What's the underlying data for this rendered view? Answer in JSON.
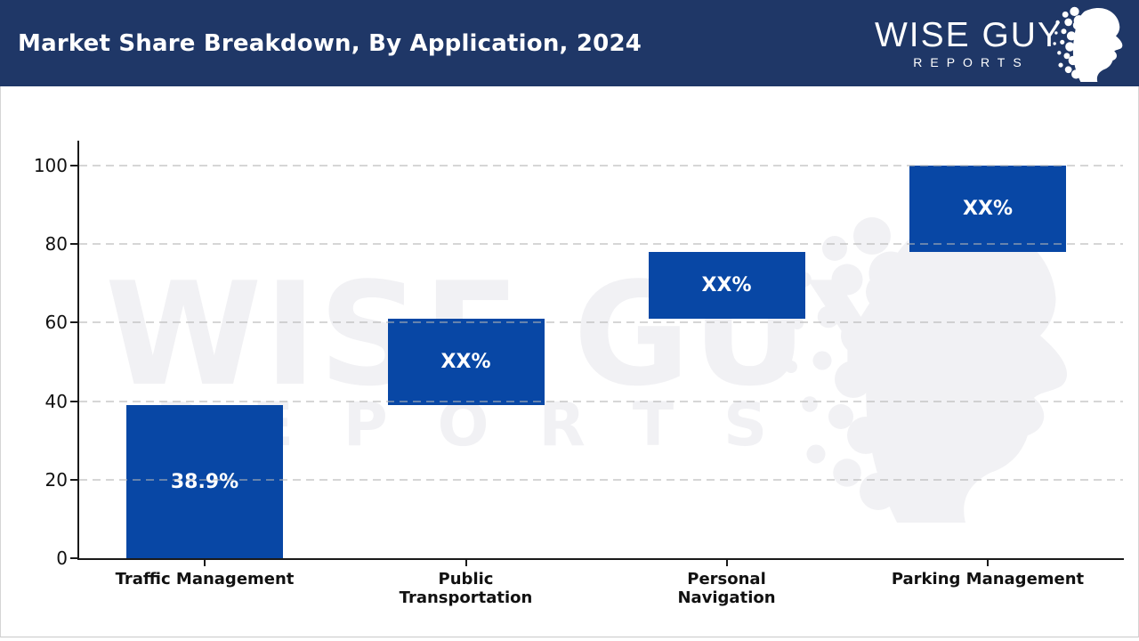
{
  "header": {
    "title": "Market Share Breakdown, By Application, 2024",
    "logo": {
      "line1": "WISE GUY",
      "line2": "REPORTS"
    }
  },
  "watermark": {
    "line1": "WISE GUY",
    "line2": "REPORTS"
  },
  "chart_data": {
    "type": "bar",
    "subtype": "waterfall",
    "title": "Market Share Breakdown, By Application, 2024",
    "categories": [
      "Traffic Management",
      "Public Transportation",
      "Personal Navigation",
      "Parking Management"
    ],
    "category_label_lines": [
      [
        "Traffic Management"
      ],
      [
        "Public",
        "Transportation"
      ],
      [
        "Personal",
        "Navigation"
      ],
      [
        "Parking Management"
      ]
    ],
    "segments": [
      {
        "category": "Traffic Management",
        "start": 0,
        "end": 38.9,
        "label": "38.9%"
      },
      {
        "category": "Public Transportation",
        "start": 38.9,
        "end": 61,
        "label": "XX%"
      },
      {
        "category": "Personal Navigation",
        "start": 61,
        "end": 78,
        "label": "XX%"
      },
      {
        "category": "Parking Management",
        "start": 78,
        "end": 100,
        "label": "XX%"
      }
    ],
    "yticks": [
      0,
      20,
      40,
      60,
      80,
      100
    ],
    "ylim": [
      0,
      106
    ],
    "xlabel": "",
    "ylabel": "",
    "grid": "horizontal-dashed",
    "legend": "none",
    "bar_color": "#0847a5",
    "value_label_color": "#ffffff"
  },
  "colors": {
    "header_bg": "#1f3767",
    "bar": "#0847a5",
    "watermark": "#f1f1f4",
    "axis": "#1a1a1a"
  }
}
